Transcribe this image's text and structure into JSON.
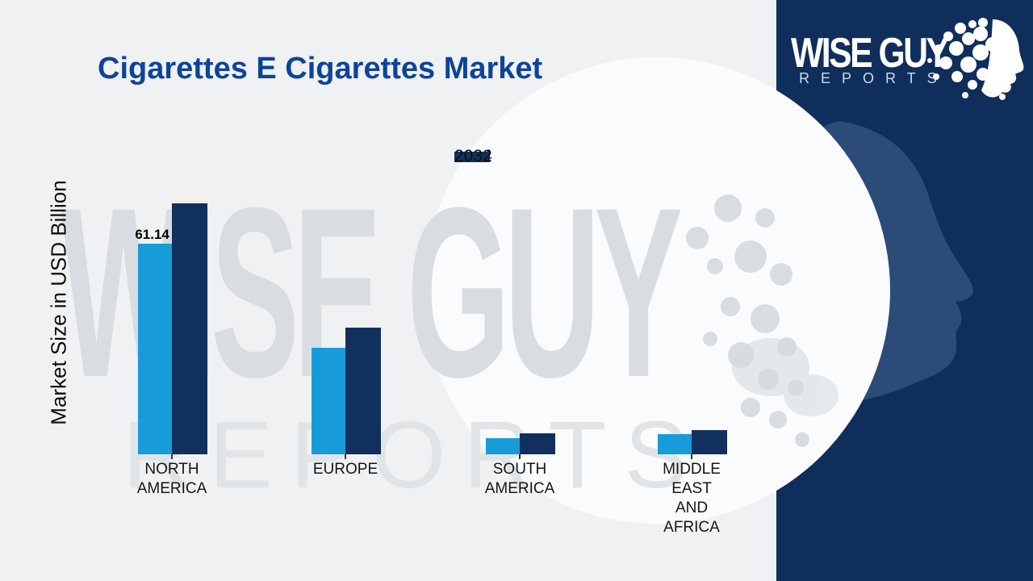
{
  "title": "Cigarettes E Cigarettes Market",
  "logo": {
    "name": "WISE GUY",
    "sub": "REPORTS"
  },
  "watermark": {
    "name": "WISE GUY",
    "sub": "REPORTS"
  },
  "chart_data": {
    "type": "bar",
    "title": "Cigarettes E Cigarettes Market",
    "xlabel": "",
    "ylabel": "Market Size in USD Billion",
    "categories": [
      "NORTH AMERICA",
      "EUROPE",
      "SOUTH AMERICA",
      "MIDDLE EAST AND AFRICA"
    ],
    "categories_wrapped": [
      [
        "NORTH",
        "AMERICA"
      ],
      [
        "EUROPE"
      ],
      [
        "SOUTH",
        "AMERICA"
      ],
      [
        "MIDDLE",
        "EAST",
        "AND",
        "AFRICA"
      ]
    ],
    "series": [
      {
        "name": "2024",
        "color": "#189cd9",
        "values": [
          61.14,
          30.9,
          4.7,
          5.9
        ]
      },
      {
        "name": "2032",
        "color": "#12305e",
        "values": [
          72.9,
          36.8,
          6.1,
          7.0
        ]
      }
    ],
    "data_labels": [
      {
        "series": "2024",
        "category": "NORTH AMERICA",
        "text": "61.14"
      }
    ],
    "ylim": [
      0,
      80
    ],
    "grid": false,
    "legend_position": "top-center"
  },
  "colors": {
    "accent_blue": "#189cd9",
    "navy": "#12305e",
    "title_blue": "#0d4499",
    "teal_footer": "#195d7b",
    "background": "#f0f1f2",
    "watermark_gray": "#d9dde1"
  }
}
